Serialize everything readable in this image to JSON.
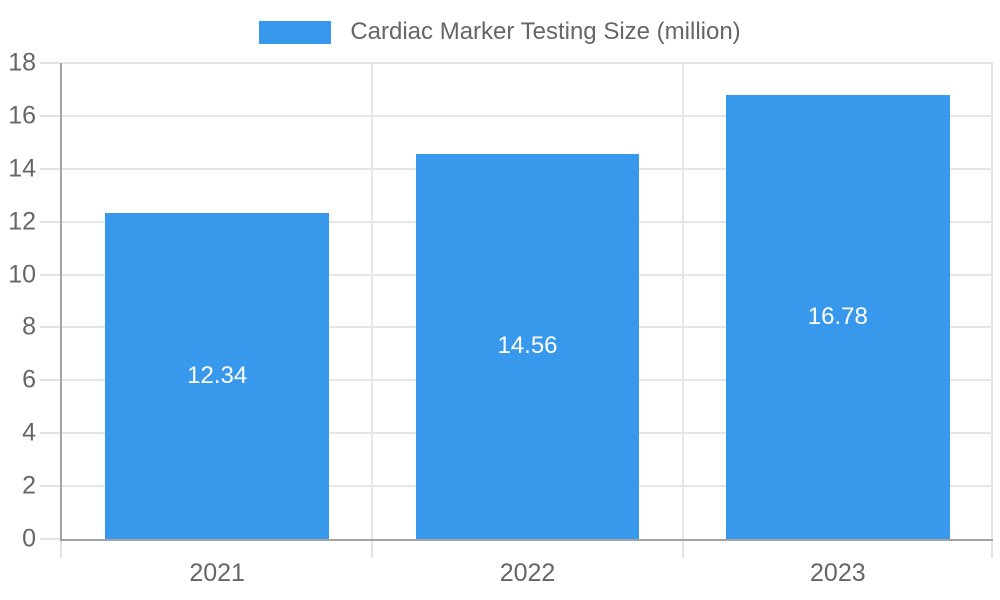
{
  "legend": {
    "items": [
      {
        "label": "Cardiac Marker Testing Size (million)",
        "color": "#3899EC"
      }
    ]
  },
  "chart_data": {
    "type": "bar",
    "title": "",
    "categories": [
      "2021",
      "2022",
      "2023"
    ],
    "series": [
      {
        "name": "Cardiac Marker Testing Size (million)",
        "color": "#3899EC",
        "values": [
          12.34,
          14.56,
          16.78
        ],
        "labels": [
          "12.34",
          "14.56",
          "16.78"
        ]
      }
    ],
    "xlabel": "",
    "ylabel": "",
    "ylim": [
      0,
      18
    ],
    "yticks": [
      0,
      2,
      4,
      6,
      8,
      10,
      12,
      14,
      16,
      18
    ],
    "grid": true,
    "legend_position": "top-center",
    "bar_label_color": "#ffffff",
    "axis_color": "#a3a3a3",
    "gridline_color": "#e6e6e6",
    "tick_color": "#e2e2e2",
    "tick_text_color": "#666666",
    "background_color": "#ffffff"
  }
}
